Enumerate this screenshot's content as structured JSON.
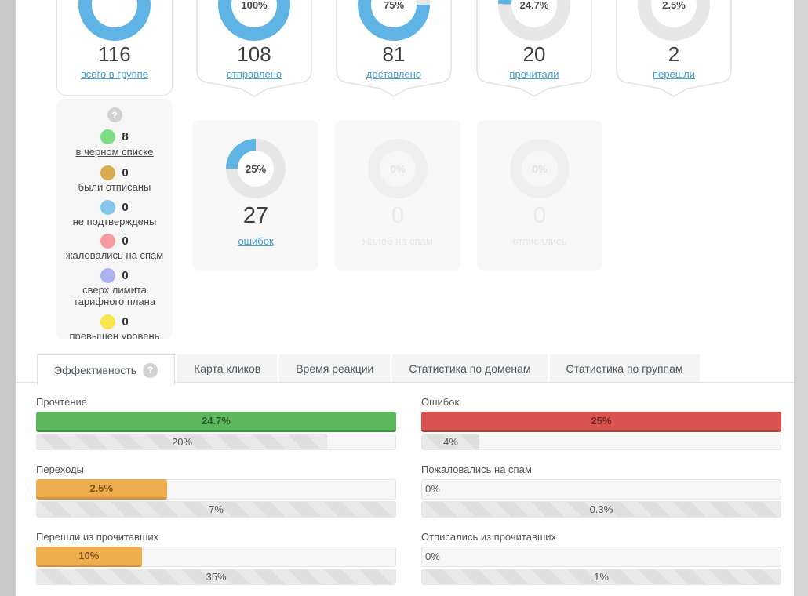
{
  "colors": {
    "donut_fill": "#5fb4e5",
    "donut_track": "#e7e7e7",
    "donut_track_faded": "#efefef",
    "green": "#5cb85c",
    "green_dark": "#459a45",
    "green_text": "#2f5c2f",
    "red": "#d95350",
    "red_dark": "#b93f3c",
    "red_text": "#6e2522",
    "orange": "#f0ad4e",
    "orange_dark": "#d8903a",
    "orange_text": "#7b5315"
  },
  "top_cards": [
    {
      "value": "116",
      "label": "всего в группе",
      "percent_label": "",
      "fill": 100
    },
    {
      "value": "108",
      "label": "отправлено",
      "percent_label": "100%",
      "fill": 100
    },
    {
      "value": "81",
      "label": "доставлено",
      "percent_label": "75%",
      "fill": 75
    },
    {
      "value": "20",
      "label": "прочитали",
      "percent_label": "24.7%",
      "fill": 24.7
    },
    {
      "value": "2",
      "label": "перешли",
      "percent_label": "2.5%",
      "fill": 2.5
    }
  ],
  "legend": {
    "help_icon": "?",
    "items": [
      {
        "dot_color": "#7edd81",
        "value": "8",
        "label": "в черном списке",
        "link": true
      },
      {
        "dot_color": "#d6ac4e",
        "value": "0",
        "label": "были отписаны",
        "link": false
      },
      {
        "dot_color": "#85c6ee",
        "value": "0",
        "label": "не подтверждены",
        "link": false
      },
      {
        "dot_color": "#f79ba0",
        "value": "0",
        "label": "жаловались на спам",
        "link": false
      },
      {
        "dot_color": "#abb4f2",
        "value": "0",
        "label": "сверх лимита тарифного плана",
        "link": false
      },
      {
        "dot_color": "#f8e54c",
        "value": "0",
        "label": "превышен уровень беспокойства",
        "link": false
      }
    ]
  },
  "mid_cards": [
    {
      "percent_label": "25%",
      "fill": 25,
      "value": "27",
      "label": "ошибок",
      "faded": false
    },
    {
      "percent_label": "0%",
      "fill": 0,
      "value": "0",
      "label": "жалоб на спам",
      "faded": true
    },
    {
      "percent_label": "0%",
      "fill": 0,
      "value": "0",
      "label": "отписались",
      "faded": true
    }
  ],
  "tabs": [
    {
      "label": "Эффективность",
      "active": true,
      "help_icon": "?"
    },
    {
      "label": "Карта кликов",
      "active": false
    },
    {
      "label": "Время реакции",
      "active": false
    },
    {
      "label": "Статистика по доменам",
      "active": false
    },
    {
      "label": "Статистика по группам",
      "active": false
    }
  ],
  "metrics": [
    {
      "title": "Прочтение",
      "value_label": "24.7%",
      "value_pct": 100,
      "color": "green",
      "avg_label": "20%",
      "avg_pct": 81
    },
    {
      "title": "Ошибок",
      "value_label": "25%",
      "value_pct": 100,
      "color": "red",
      "avg_label": "4%",
      "avg_pct": 16
    },
    {
      "title": "Переходы",
      "value_label": "2.5%",
      "value_pct": 36,
      "color": "orange",
      "avg_label": "7%",
      "avg_pct": 100
    },
    {
      "title": "Пожаловались на спам",
      "value_label": "0%",
      "value_pct": 0,
      "color": "orange",
      "avg_label": "0.3%",
      "avg_pct": 100
    },
    {
      "title": "Перешли из прочитавших",
      "value_label": "10%",
      "value_pct": 29,
      "color": "orange",
      "avg_label": "35%",
      "avg_pct": 100
    },
    {
      "title": "Отписались из прочитавших",
      "value_label": "0%",
      "value_pct": 0,
      "color": "orange",
      "avg_label": "1%",
      "avg_pct": 100
    }
  ]
}
